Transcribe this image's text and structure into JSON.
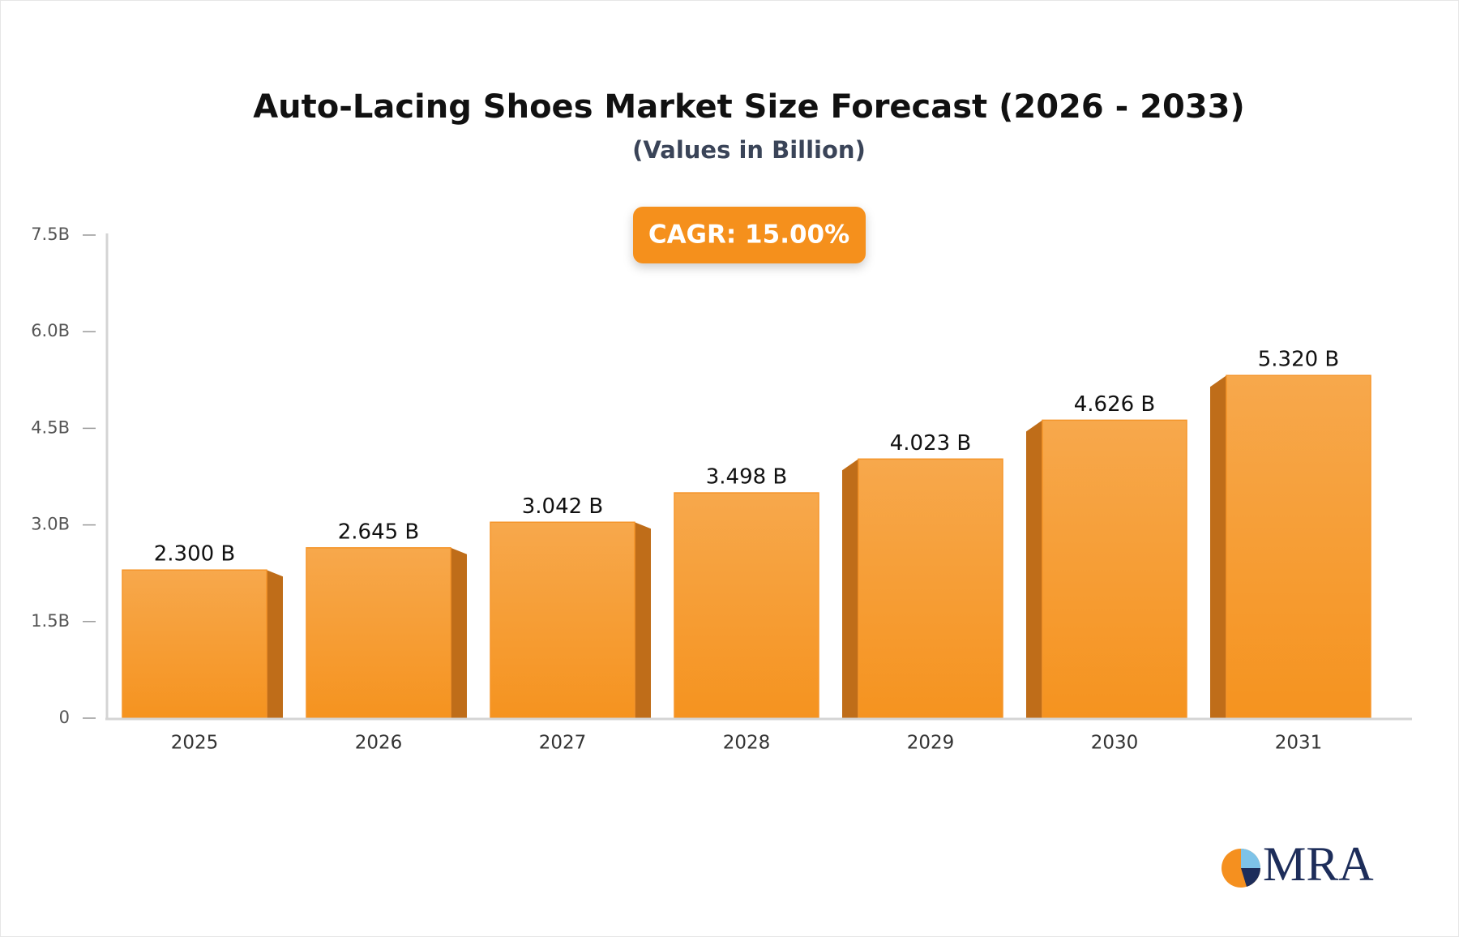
{
  "title": "Auto-Lacing Shoes Market Size Forecast (2026 - 2033)",
  "subtitle": "(Values in Billion)",
  "badge": "CAGR: 15.00%",
  "logo": "MRA",
  "chart_data": {
    "type": "bar",
    "categories": [
      "2025",
      "2026",
      "2027",
      "2028",
      "2029",
      "2030",
      "2031"
    ],
    "values": [
      2.3,
      2.645,
      3.042,
      3.498,
      4.023,
      4.626,
      5.32
    ],
    "value_labels": [
      "2.300 B",
      "2.645 B",
      "3.042 B",
      "3.498 B",
      "4.023 B",
      "4.626 B",
      "5.320 B"
    ],
    "color": "#f5952a",
    "ylim": [
      0,
      7.5
    ],
    "yticks": [
      0,
      {
        "value": 1.5,
        "label": "1.5B"
      },
      {
        "value": 3.0,
        "label": "3.0B"
      },
      {
        "value": 4.5,
        "label": "4.5B"
      },
      {
        "value": 6.0,
        "label": "6.0B"
      },
      {
        "value": 7.5,
        "label": "7.5B"
      }
    ]
  }
}
